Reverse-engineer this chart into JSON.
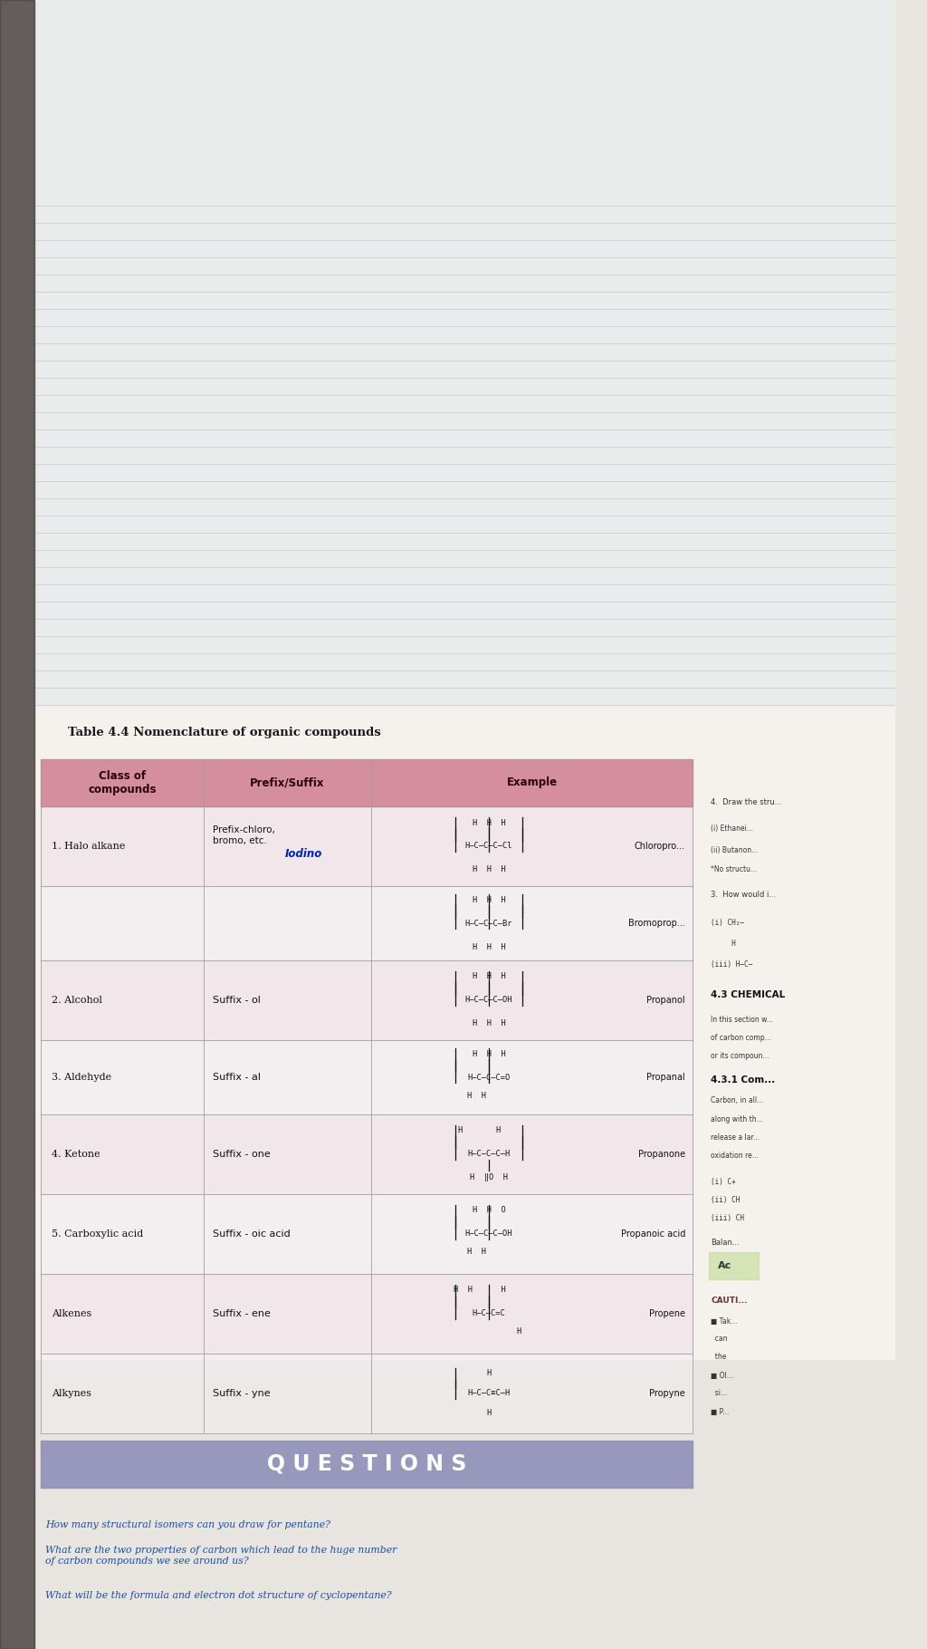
{
  "title": "Table 4.4 Nomenclature of organic compounds",
  "table_header": [
    "Class of\ncompounds",
    "Prefix/Suffix",
    "Example"
  ],
  "rows": [
    {
      "class": "1. Halo alkane",
      "prefix": "Prefix-chloro,\nbromo, etc. Iodino",
      "example_name": "Chloropro...",
      "formula_type": "haloalkane_cl"
    },
    {
      "class": "",
      "prefix": "",
      "example_name": "Bromoprop...",
      "formula_type": "haloalkane_br"
    },
    {
      "class": "2. Alcohol",
      "prefix": "Suffix - ol",
      "example_name": "Propanol",
      "formula_type": "alcohol"
    },
    {
      "class": "3. Aldehyde",
      "prefix": "Suffix - al",
      "example_name": "Propanal",
      "formula_type": "aldehyde"
    },
    {
      "class": "4. Ketone",
      "prefix": "Suffix - one",
      "example_name": "Propanone",
      "formula_type": "ketone"
    },
    {
      "class": "5. Carboxylic acid",
      "prefix": "Suffix - oic acid",
      "example_name": "Propanoic acid",
      "formula_type": "carboxylic"
    },
    {
      "class": "Alkenes",
      "prefix": "Suffix - ene",
      "example_name": "Propene",
      "formula_type": "alkene"
    },
    {
      "class": "Alkynes",
      "prefix": "Suffix - yne",
      "example_name": "Propyne",
      "formula_type": "alkyne"
    }
  ],
  "questions_title": "Q U E S T I O N S",
  "questions": [
    "How many structural isomers can you draw for pentane?",
    "What are the two properties of carbon which lead to the huge number\nof carbon compounds we see around us?",
    "What will be the formula and electron dot structure of cyclopentane?"
  ],
  "bg_color": "#e8e4e0",
  "header_color": "#d4899a",
  "row_alt_color": "#eedde8",
  "row_color": "#f2eef2",
  "questions_bg": "#9090b8",
  "questions_text_color": "#1a50a0",
  "page_color": "#f5f2ee",
  "notebook_line_color": "#b0bcc8",
  "spine_color": "#383030"
}
